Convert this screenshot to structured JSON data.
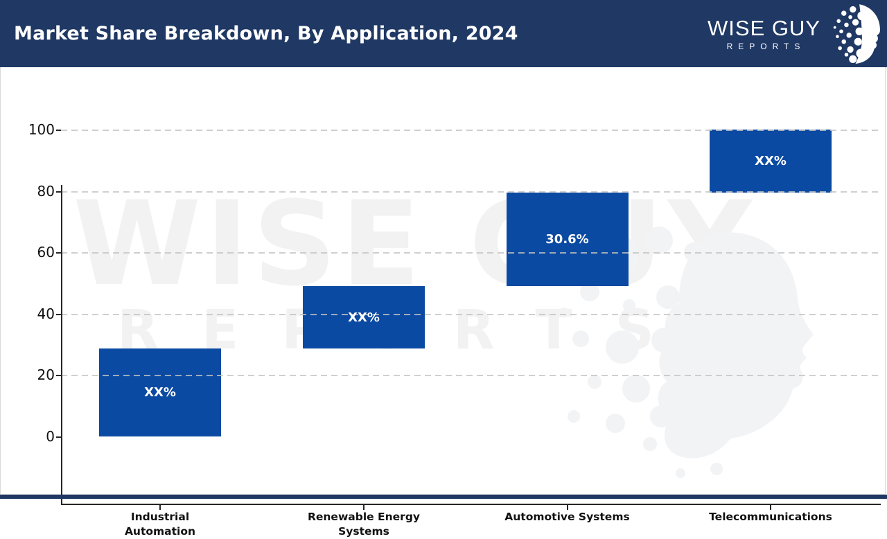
{
  "header": {
    "title": "Market Share Breakdown, By Application, 2024",
    "bg_color": "#1f3864",
    "logo": {
      "line1": "WISE GUY",
      "line2": "REPORTS"
    }
  },
  "watermark": {
    "line1": "WISE GUY",
    "line2": "REPORTS"
  },
  "chart_data": {
    "type": "bar",
    "subtype": "floating-waterfall",
    "title": "Market Share Breakdown, By Application, 2024",
    "xlabel": "",
    "ylabel": "",
    "categories": [
      "Industrial Automation",
      "Renewable Energy Systems",
      "Automotive Systems",
      "Telecommunications"
    ],
    "category_lines": [
      [
        "Industrial",
        "Automation"
      ],
      [
        "Renewable Energy",
        "Systems"
      ],
      [
        "Automotive Systems"
      ],
      [
        "Telecommunications"
      ]
    ],
    "segments": [
      {
        "category": "Industrial Automation",
        "start": 0,
        "end": 28.6,
        "value": 28.6,
        "label": "XX%"
      },
      {
        "category": "Renewable Energy Systems",
        "start": 28.6,
        "end": 48.9,
        "value": 20.3,
        "label": "XX%"
      },
      {
        "category": "Automotive Systems",
        "start": 48.9,
        "end": 79.5,
        "value": 30.6,
        "label": "30.6%"
      },
      {
        "category": "Telecommunications",
        "start": 79.5,
        "end": 100,
        "value": 20.5,
        "label": "XX%"
      }
    ],
    "ylim": [
      0,
      100
    ],
    "yticks": [
      0,
      20,
      40,
      60,
      80,
      100
    ],
    "grid": "horizontal dashed, drawn over bars",
    "legend": "none",
    "bar_color": "#0b4aa2",
    "label_color": "#ffffff",
    "axis_color": "#262626",
    "grid_color": "#c8c8c8"
  }
}
